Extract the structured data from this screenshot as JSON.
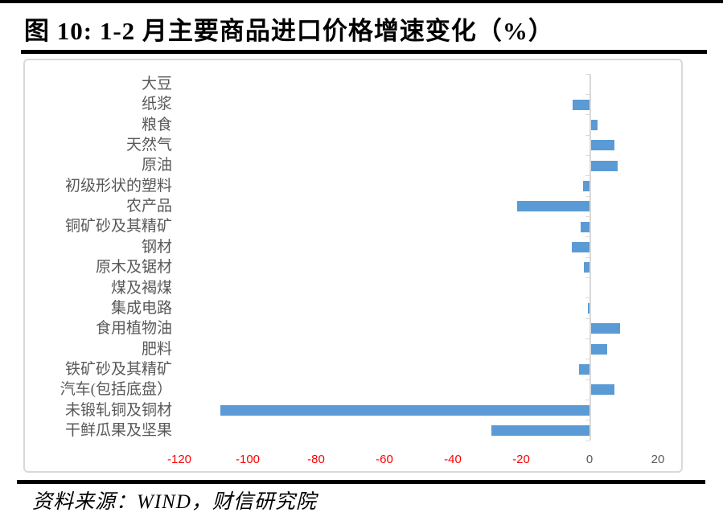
{
  "header": {
    "title": "图 10: 1-2 月主要商品进口价格增速变化（%）"
  },
  "footer": {
    "source": "资料来源：WIND，财信研究院"
  },
  "chart_data": {
    "type": "bar",
    "orientation": "horizontal",
    "title": "图 10: 1-2 月主要商品进口价格增速变化（%）",
    "categories": [
      "大豆",
      "纸浆",
      "粮食",
      "天然气",
      "原油",
      "初级形状的塑料",
      "农产品",
      "铜矿砂及其精矿",
      "钢材",
      "原木及锯材",
      "煤及褐煤",
      "集成电路",
      "食用植物油",
      "肥料",
      "铁矿砂及其精矿",
      "汽车(包括底盘）",
      "未锻轧铜及铜材",
      "干鲜瓜果及坚果"
    ],
    "values": [
      0.3,
      -4.9,
      2.4,
      7.2,
      8.2,
      -2.0,
      -21.2,
      -2.7,
      -5.2,
      -1.6,
      0,
      -0.5,
      8.9,
      5.2,
      -3.1,
      7.2,
      -108.1,
      -28.8
    ],
    "x_ticks": [
      -120,
      -100,
      -80,
      -60,
      -40,
      -20,
      0,
      20
    ],
    "xlim": [
      -122,
      27
    ],
    "xlabel": "",
    "ylabel": "",
    "grid": false,
    "legend": false,
    "bar_color": "#5B9BD5",
    "axis_color": "#D9D9D9",
    "tick_label_color": "#595959",
    "negative_tick_label_color": "#FF0000",
    "category_label_color": "#595959"
  }
}
